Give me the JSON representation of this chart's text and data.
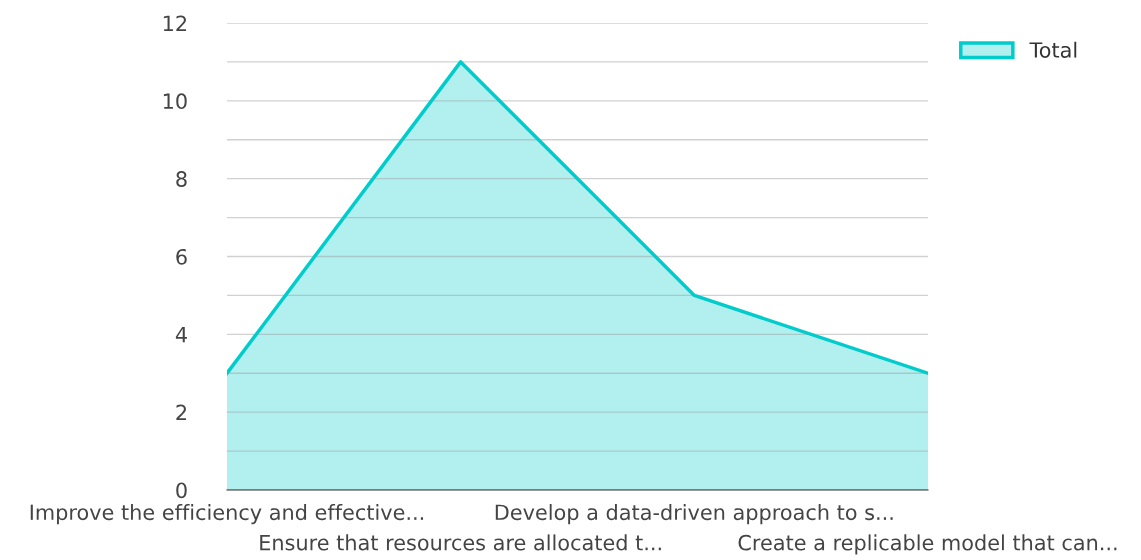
{
  "chart_data": {
    "type": "area",
    "categories": [
      "Improve the efficiency and effective...",
      "Ensure that resources are allocated t...",
      "Develop a data-driven approach to s...",
      "Create a replicable model that can..."
    ],
    "series": [
      {
        "name": "Total",
        "color": "#00cccc",
        "values": [
          3,
          11,
          5,
          3
        ]
      }
    ],
    "ylim": [
      0,
      12
    ],
    "yticks": [
      0,
      {
        "value": 1,
        "label": null
      },
      2,
      {
        "value": 3,
        "label": null
      },
      4,
      {
        "value": 5,
        "label": null
      },
      6,
      {
        "value": 7,
        "label": null
      },
      8,
      {
        "value": 9,
        "label": null
      },
      10,
      {
        "value": 11,
        "label": null
      },
      12
    ],
    "grid": "y",
    "legend": "top right"
  }
}
